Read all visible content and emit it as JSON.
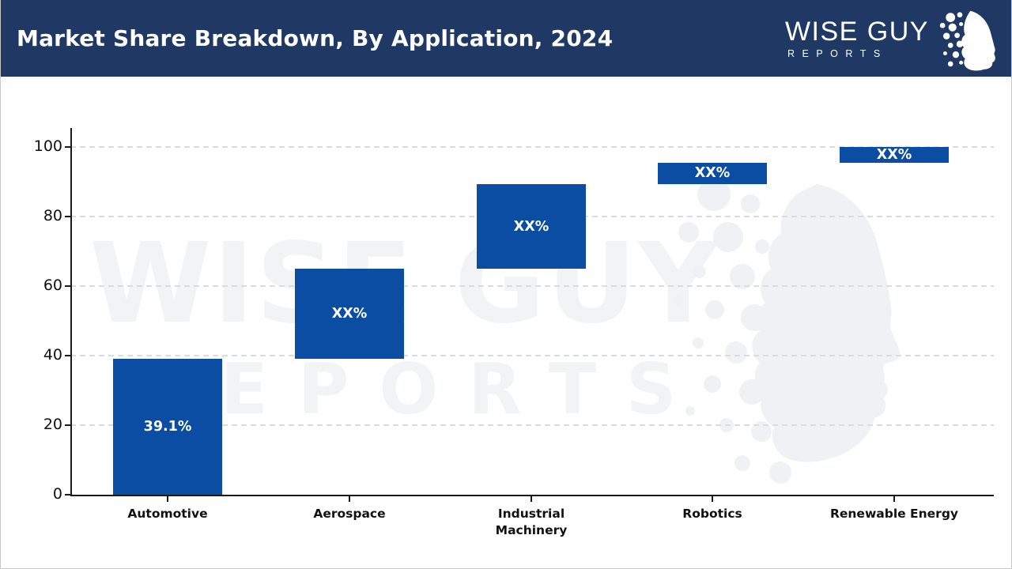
{
  "header": {
    "title": "Market Share Breakdown, By Application, 2024",
    "logo": {
      "line1": "WISE GUY",
      "line2": "REPORTS"
    }
  },
  "watermark": {
    "line1": "WISE GUY",
    "line2": "REPORTS"
  },
  "colors": {
    "header_bg": "#1f3864",
    "bar": "#0b4da2",
    "grid": "#dcdcdc",
    "axis": "#1a1a1a",
    "bar_label": "#ffffff",
    "watermark": "#f2f3f5",
    "frame_border": "#c9c9c9"
  },
  "chart_data": {
    "type": "bar",
    "subtype": "waterfall",
    "title": "Market Share Breakdown, By Application, 2024",
    "xlabel": "",
    "ylabel": "",
    "ylim": [
      0,
      105
    ],
    "yticks": [
      0,
      20,
      40,
      60,
      80,
      100
    ],
    "grid": "dashed-horizontal",
    "legend": "none",
    "categories": [
      "Automotive",
      "Aerospace",
      "Industrial Machinery",
      "Robotics",
      "Renewable Energy"
    ],
    "segments": [
      {
        "category": "Automotive",
        "tick_lines": [
          "Automotive"
        ],
        "start": 0,
        "end": 39.1,
        "label": "39.1%"
      },
      {
        "category": "Aerospace",
        "tick_lines": [
          "Aerospace"
        ],
        "start": 39.1,
        "end": 65,
        "label": "XX%"
      },
      {
        "category": "Industrial Machinery",
        "tick_lines": [
          "Industrial",
          "Machinery"
        ],
        "start": 65,
        "end": 89.3,
        "label": "XX%"
      },
      {
        "category": "Robotics",
        "tick_lines": [
          "Robotics"
        ],
        "start": 89.3,
        "end": 95.5,
        "label": "XX%"
      },
      {
        "category": "Renewable Energy",
        "tick_lines": [
          "Renewable Energy"
        ],
        "start": 95.5,
        "end": 100,
        "label": "XX%"
      }
    ]
  }
}
